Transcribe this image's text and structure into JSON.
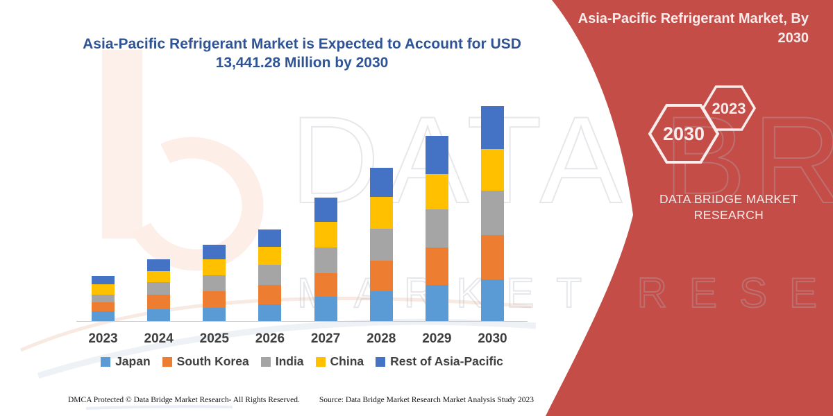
{
  "title": "Asia-Pacific Refrigerant Market is Expected to Account for USD 13,441.28 Million by 2030",
  "side_panel": {
    "heading": "Asia-Pacific Refrigerant Market, By 2030",
    "hexagons": [
      {
        "label": "2030"
      },
      {
        "label": "2023"
      }
    ],
    "brand": "DATA BRIDGE MARKET RESEARCH",
    "panel_color": "#C44D47"
  },
  "watermark": {
    "line1": "DATA BRIDGE",
    "line2": "MARKET RESEARCH"
  },
  "footer": {
    "dmca": "DMCA Protected © Data Bridge Market Research-  All Rights Reserved.",
    "source": "Source: Data Bridge Market Research  Market Analysis Study 2023"
  },
  "chart_data": {
    "type": "bar",
    "stacked": true,
    "unit": "USD Million",
    "title": "Asia-Pacific Refrigerant Market is Expected to Account for USD 13,441.28 Million by 2030",
    "xlabel": "",
    "ylabel": "",
    "ylim": [
      0,
      13600
    ],
    "grid": false,
    "legend_position": "bottom",
    "categories": [
      "2023",
      "2024",
      "2025",
      "2026",
      "2027",
      "2028",
      "2029",
      "2030"
    ],
    "series": [
      {
        "name": "Japan",
        "color": "#5B9BD5",
        "values": [
          620,
          725,
          845,
          1060,
          1525,
          1855,
          2240,
          2606
        ]
      },
      {
        "name": "South Korea",
        "color": "#ED7D31",
        "values": [
          535,
          905,
          1010,
          1180,
          1485,
          1920,
          2350,
          2783
        ]
      },
      {
        "name": "India",
        "color": "#A5A5A5",
        "values": [
          505,
          780,
          1010,
          1270,
          1590,
          1980,
          2380,
          2770
        ]
      },
      {
        "name": "China",
        "color": "#FFC000",
        "values": [
          650,
          720,
          1010,
          1155,
          1590,
          2020,
          2210,
          2598
        ]
      },
      {
        "name": "Rest of Asia-Pacific",
        "color": "#4472C4",
        "values": [
          505,
          720,
          895,
          1080,
          1515,
          1805,
          2380,
          2684.28
        ]
      }
    ],
    "totals": [
      2815,
      3850,
      4770,
      5745,
      7705,
      9580,
      11560,
      13441.28
    ]
  }
}
